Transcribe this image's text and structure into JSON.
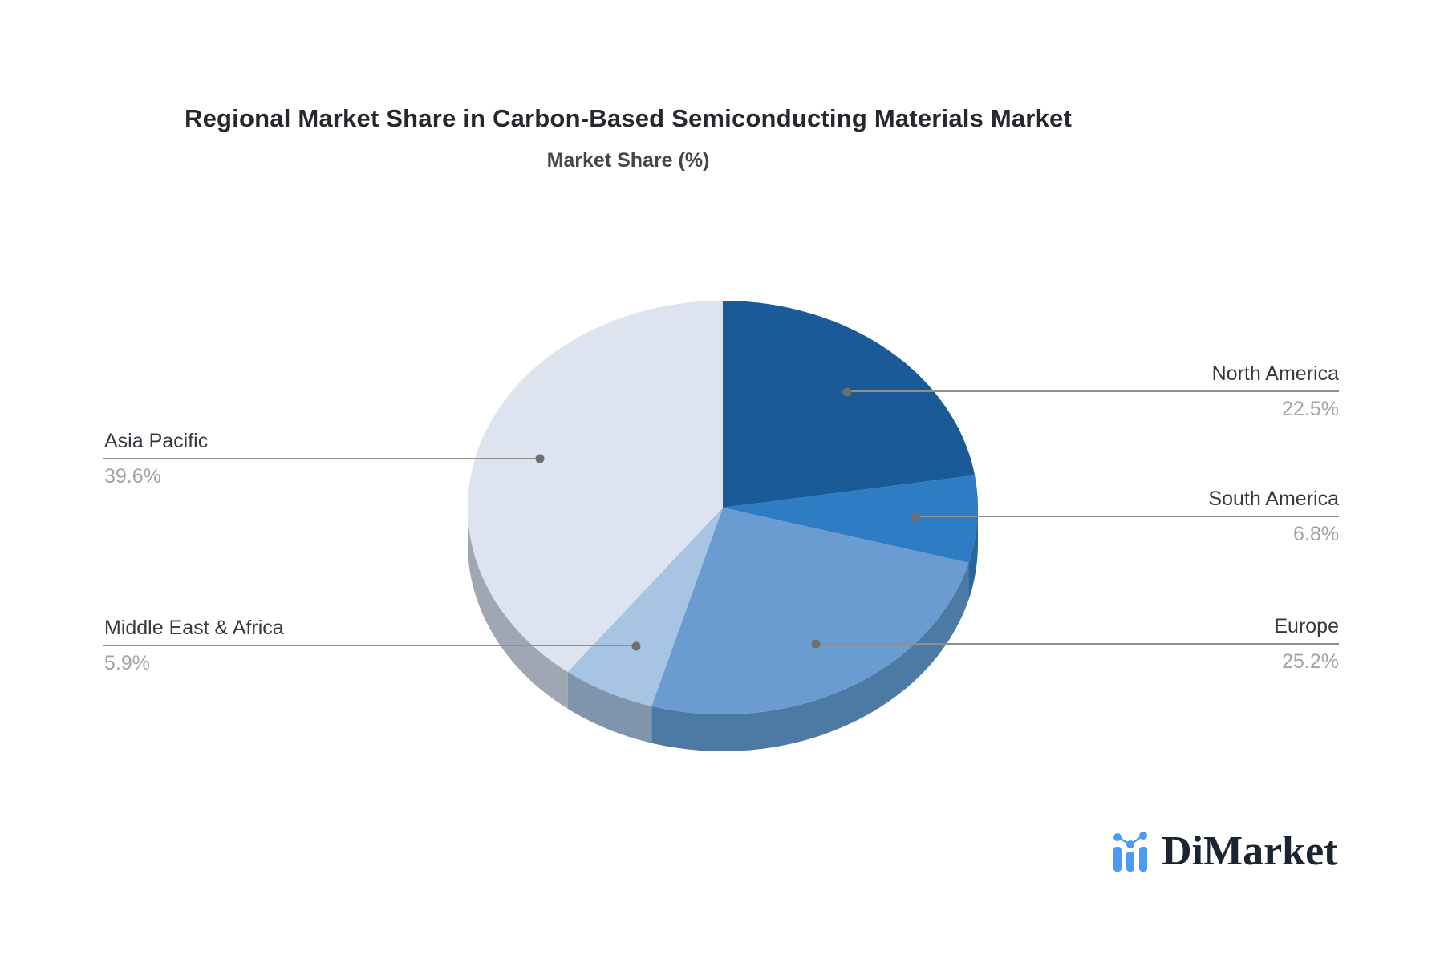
{
  "title": "Regional Market Share in Carbon-Based Semiconducting Materials Market",
  "subtitle": "Market Share (%)",
  "brand": {
    "name": "DiMarket",
    "icon_color": "#4a9bf5",
    "text_color": "#1b2531"
  },
  "chart_data": {
    "type": "pie",
    "style": "3d",
    "title": "Regional Market Share in Carbon-Based Semiconducting Materials Market",
    "subtitle": "Market Share (%)",
    "unit": "%",
    "start_angle": "12 o'clock",
    "direction": "clockwise",
    "slices": [
      {
        "label": "North America",
        "value": 22.5,
        "color": "#1a5a96",
        "side_color": "#15497a"
      },
      {
        "label": "South America",
        "value": 6.8,
        "color": "#2e7cc3",
        "side_color": "#27679e"
      },
      {
        "label": "Europe",
        "value": 25.2,
        "color": "#6a9cd2",
        "side_color": "#4d7aa5"
      },
      {
        "label": "Middle East & Africa",
        "value": 5.9,
        "color": "#a7c4e2",
        "side_color": "#7e95ad"
      },
      {
        "label": "Asia Pacific",
        "value": 39.6,
        "color": "#dde4ef",
        "side_color": "#9fa8b2"
      }
    ],
    "callout_style": {
      "line_color": "#8f8f8f",
      "dot_color": "#6f6f6f"
    }
  },
  "labels": {
    "north_america": {
      "name": "North America",
      "pct": "22.5%"
    },
    "south_america": {
      "name": "South America",
      "pct": "6.8%"
    },
    "europe": {
      "name": "Europe",
      "pct": "25.2%"
    },
    "middle_east_africa": {
      "name": "Middle East & Africa",
      "pct": "5.9%"
    },
    "asia_pacific": {
      "name": "Asia Pacific",
      "pct": "39.6%"
    }
  }
}
